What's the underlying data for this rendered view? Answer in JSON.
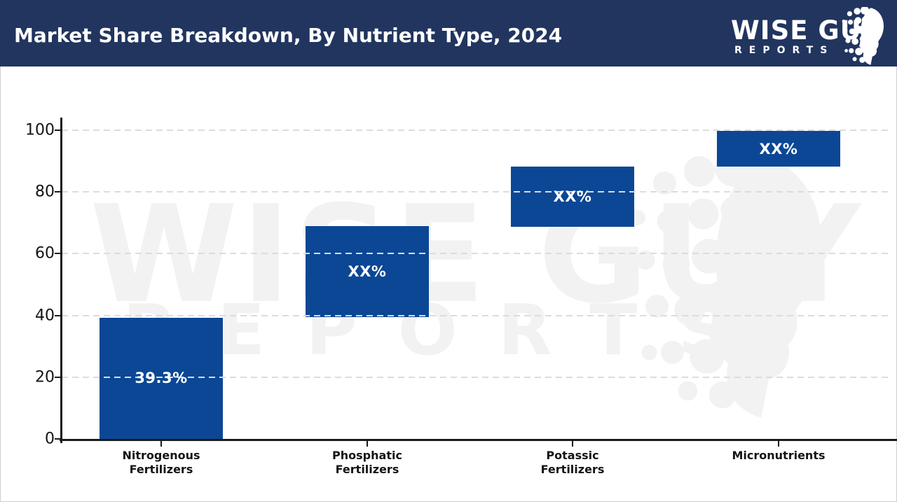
{
  "header": {
    "title": "Market Share Breakdown, By Nutrient Type, 2024",
    "logo": {
      "line1": "WISE GUY",
      "line2": "REPORTS"
    }
  },
  "watermark": {
    "line1": "WISE GUY",
    "line2": "REPORTS"
  },
  "colors": {
    "header_bg": "#21355F",
    "bar": "#0B4795",
    "bar_label_text": "#FFFFFF",
    "axis": "#1A1A1A",
    "gridline": "#DCDCDC",
    "watermark": "#F2F2F2",
    "frame_border": "#CFCFCF",
    "tick_text": "#141414"
  },
  "chart_data": {
    "type": "bar",
    "subtype": "waterfall",
    "title": "Market Share Breakdown, By Nutrient Type, 2024",
    "categories": [
      "Nitrogenous\nFertilizers",
      "Phosphatic\nFertilizers",
      "Potassic\nFertilizers",
      "Micronutrients"
    ],
    "bars": [
      {
        "category": "Nitrogenous Fertilizers",
        "label": "39.3%",
        "start": 0,
        "end": 39.3
      },
      {
        "category": "Phosphatic Fertilizers",
        "label": "XX%",
        "start": 39.4,
        "end": 68.9
      },
      {
        "category": "Potassic Fertilizers",
        "label": "XX%",
        "start": 68.8,
        "end": 88.2
      },
      {
        "category": "Micronutrients",
        "label": "XX%",
        "start": 88.2,
        "end": 99.7
      }
    ],
    "xlabel": "",
    "ylabel": "",
    "ylim": [
      0,
      100
    ],
    "yticks": [
      0,
      20,
      40,
      60,
      80,
      100
    ],
    "grid": "horizontal-dashed-above-bars",
    "legend": "none",
    "bar_color": "#0B4795"
  }
}
